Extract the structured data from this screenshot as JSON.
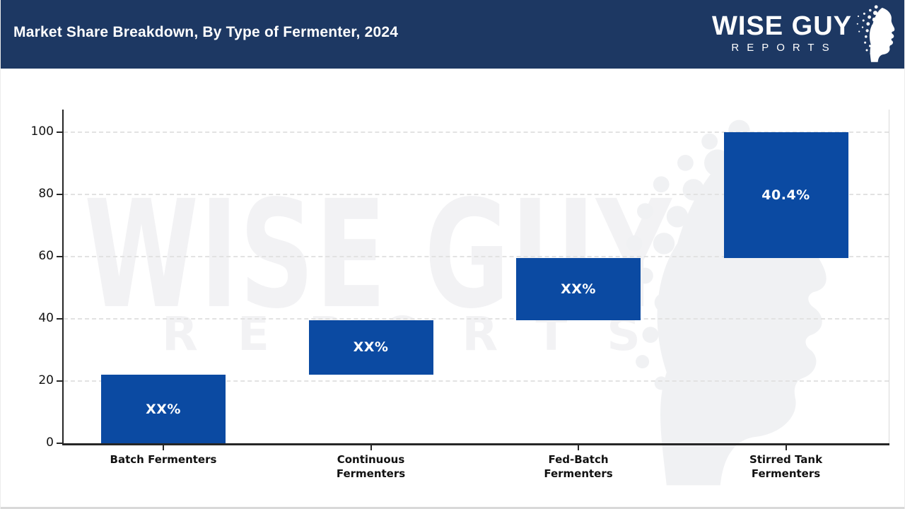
{
  "header": {
    "title": "Market Share Breakdown, By Type of Fermenter, 2024",
    "logo": {
      "wordmark": "WISE GUY",
      "sub": "REPORTS"
    }
  },
  "watermark": {
    "line1": "WISE GUY",
    "line2": "REPORTS"
  },
  "colors": {
    "header_bg": "#1d3863",
    "bar": "#0b4aa2",
    "watermark": "#f2f2f4",
    "gridline": "#e2e2e2",
    "axis": "#262626"
  },
  "chart_data": {
    "type": "bar",
    "subtype": "waterfall",
    "title": "Market Share Breakdown, By Type of Fermenter, 2024",
    "categories": [
      "Batch Fermenters",
      "Continuous Fermenters",
      "Fed-Batch Fermenters",
      "Stirred Tank Fermenters"
    ],
    "x_tick_labels": [
      "Batch Fermenters",
      "Continuous\nFermenters",
      "Fed-Batch\nFermenters",
      "Stirred Tank\nFermenters"
    ],
    "starts": [
      0,
      22,
      39.6,
      59.6
    ],
    "ends": [
      22,
      39.6,
      59.6,
      100
    ],
    "values": [
      22,
      17.6,
      20,
      40.4
    ],
    "value_labels": [
      "XX%",
      "XX%",
      "XX%",
      "40.4%"
    ],
    "ylabel": "",
    "xlabel": "",
    "ylim": [
      0,
      100
    ],
    "yticks": [
      0,
      20,
      40,
      60,
      80,
      100
    ],
    "grid": "horizontal-dashed",
    "legend": "none",
    "bar_color": "#0b4aa2"
  }
}
